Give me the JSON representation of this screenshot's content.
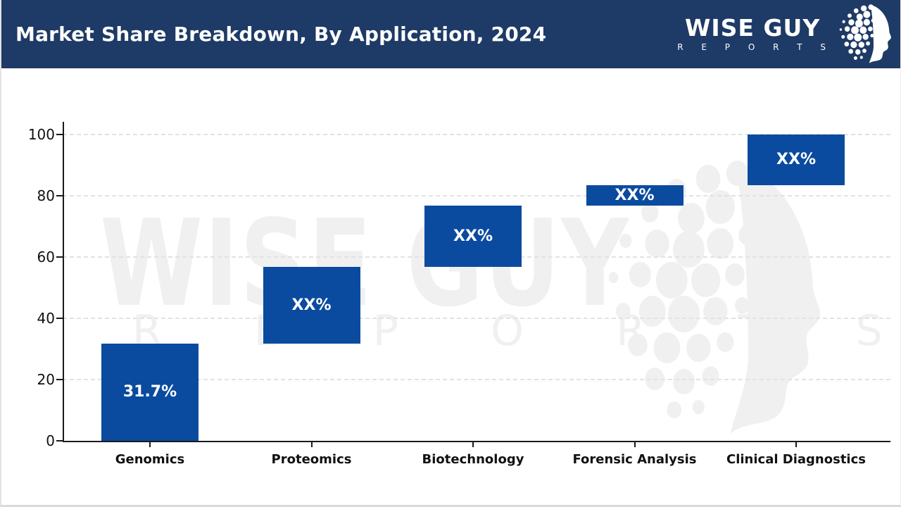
{
  "header": {
    "title": "Market Share Breakdown, By Application, 2024",
    "bg_color": "#1e3a66",
    "logo": {
      "wordmark": "WISE GUY",
      "subtext": "R E P O R T S"
    }
  },
  "watermark": {
    "wordmark": "WISE GUY",
    "subtext": "R E P O R T S"
  },
  "chart_data": {
    "type": "bar",
    "subtype": "waterfall",
    "title": "Market Share Breakdown, By Application, 2024",
    "categories": [
      "Genomics",
      "Proteomics",
      "Biotechnology",
      "Forensic Analysis",
      "Clinical Diagnostics"
    ],
    "bars": [
      {
        "category": "Genomics",
        "label": "31.7%",
        "start": 0,
        "end": 31.7
      },
      {
        "category": "Proteomics",
        "label": "XX%",
        "start": 31.7,
        "end": 56.7
      },
      {
        "category": "Biotechnology",
        "label": "XX%",
        "start": 56.7,
        "end": 76.7
      },
      {
        "category": "Forensic Analysis",
        "label": "XX%",
        "start": 76.7,
        "end": 83.5
      },
      {
        "category": "Clinical Diagnostics",
        "label": "XX%",
        "start": 83.5,
        "end": 100
      }
    ],
    "ylim": [
      0,
      100
    ],
    "yticks": [
      0,
      20,
      40,
      60,
      80,
      100
    ],
    "xlabel": "",
    "ylabel": "",
    "legend": "none",
    "grid": "horizontal-dashed",
    "bar_color": "#0b4b9f",
    "bar_label_color": "#ffffff",
    "grid_color": "#e2e2e2",
    "axis_color": "#1a1a1a"
  }
}
